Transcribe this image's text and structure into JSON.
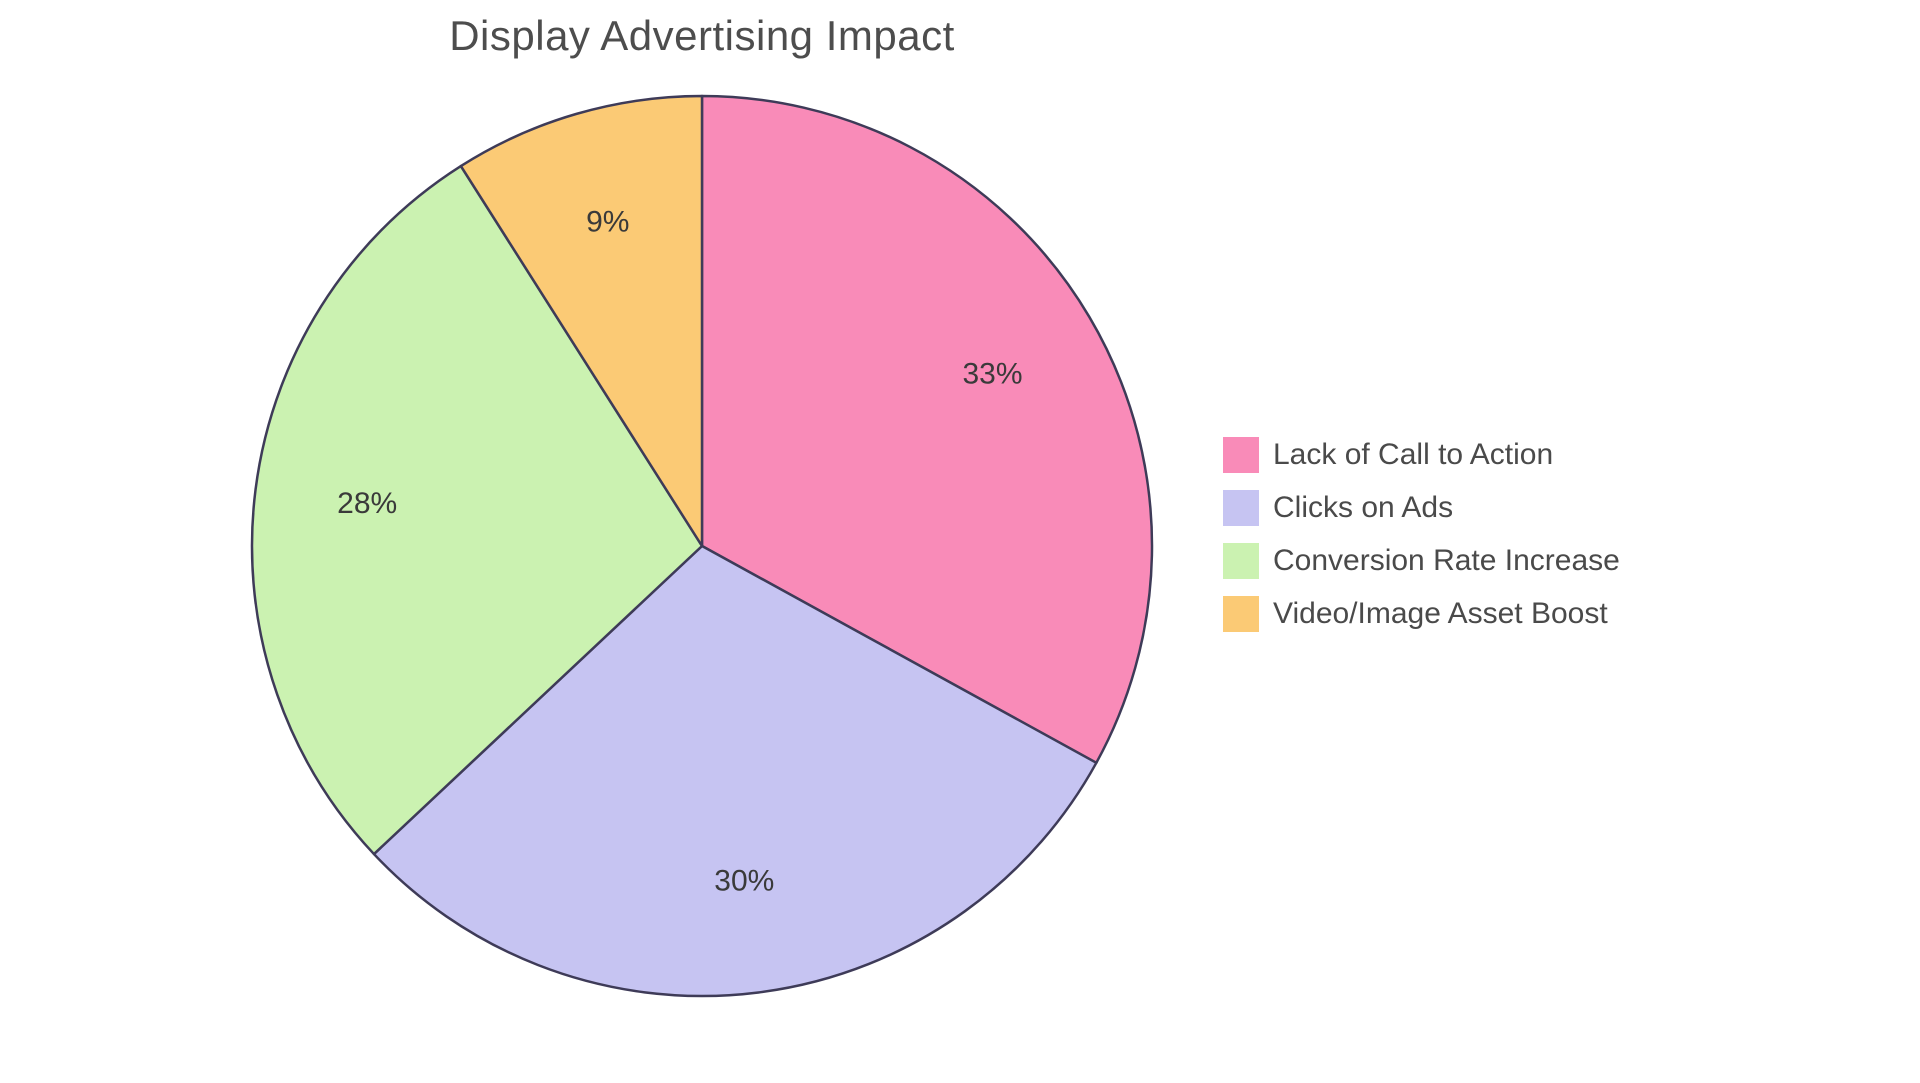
{
  "chart_data": {
    "type": "pie",
    "title": "Display Advertising Impact",
    "categories": [
      "Lack of Call to Action",
      "Clicks on Ads",
      "Conversion Rate Increase",
      "Video/Image Asset Boost"
    ],
    "values": [
      33,
      30,
      28,
      9
    ],
    "unit": "%",
    "slice_labels": [
      "33%",
      "30%",
      "28%",
      "9%"
    ],
    "colors": [
      "#f98bb8",
      "#c6c4f2",
      "#cbf2b1",
      "#fbca75"
    ],
    "outline_color": "#3e3b58",
    "start_angle": "12-oclock",
    "direction": "clockwise",
    "legend_position": "right",
    "title_color": "#4d4d4d",
    "label_color": "#3a3a3a",
    "background_color": "#ffffff"
  }
}
